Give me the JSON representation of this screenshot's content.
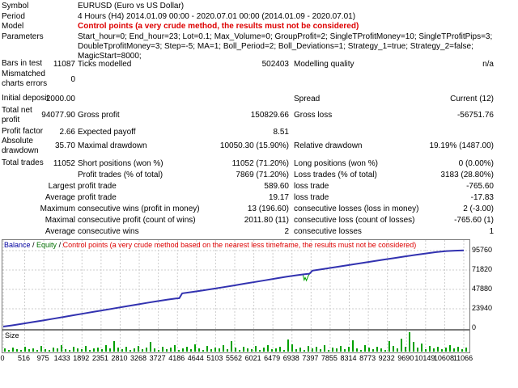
{
  "report": {
    "rows": [
      {
        "c1": "Symbol",
        "c3": "EURUSD (Euro vs US Dollar)",
        "wide": true,
        "top": 2
      },
      {
        "c1": "Period",
        "c3": "4 Hours (H4) 2014.01.09 00:00 - 2020.07.01 00:00 (2014.01.09 - 2020.07.01)",
        "wide": true,
        "top": 15
      },
      {
        "c1": "Model",
        "c3": "Control points (a very crude method, the results must not be considered)",
        "wide": true,
        "alert": true,
        "top": 27
      },
      {
        "c1": "Parameters",
        "c3": "Start_hour=0; End_hour=23; Lot=0.1; Max_Volume=0; GroupProfit=2; SingleTProfitMoney=10; SingleTProfitPips=3; DoubleTprofitMoney=3; Step=-5; MA=1; Boll_Period=2; Boll_Deviations=1; Strategy_1=true; Strategy_2=false; MagicStart=8000;",
        "wide": true,
        "h": 26,
        "top": 40
      },
      {
        "c1": "Bars in test",
        "c2": "11087",
        "c3": "Ticks modelled",
        "c4": "502403",
        "c5": "Modelling quality",
        "c6": "n/a",
        "top": 73
      },
      {
        "c1": "Mismatched charts errors",
        "c2": "0",
        "h": 26,
        "top": 86
      },
      {
        "c1": "Initial deposit",
        "c2": "2000.00",
        "c5": "Spread",
        "c6": "Current (12)",
        "top": 116
      },
      {
        "c1": "Total net profit",
        "c2": "94077.90",
        "c3": "Gross profit",
        "c4": "150829.66",
        "c5": "Gross loss",
        "c6": "-56751.76",
        "h": 24,
        "top": 131
      },
      {
        "c1": "Profit factor",
        "c2": "2.66",
        "c3": "Expected payoff",
        "c4": "8.51",
        "top": 157
      },
      {
        "c1": "Absolute drawdown",
        "c2": "35.70",
        "c3": "Maximal drawdown",
        "c4": "10050.30 (15.90%)",
        "c5": "Relative drawdown",
        "c6": "19.19% (1487.00)",
        "h": 24,
        "top": 169
      },
      {
        "c1": "Total trades",
        "c2": "11052",
        "c3": "Short positions (won %)",
        "c4": "11052 (71.20%)",
        "c5": "Long positions (won %)",
        "c6": "0 (0.00%)",
        "top": 196
      },
      {
        "c3": "Profit trades (% of total)",
        "c4": "7869 (71.20%)",
        "c5": "Loss trades (% of total)",
        "c6": "3183 (28.80%)",
        "top": 210
      },
      {
        "c2": "Largest",
        "c3": "profit trade",
        "c4": "589.60",
        "c5": "loss trade",
        "c6": "-765.60",
        "top": 224
      },
      {
        "c2": "Average",
        "c3": "profit trade",
        "c4": "19.17",
        "c5": "loss trade",
        "c6": "-17.83",
        "top": 238
      },
      {
        "c2": "Maximum",
        "c3": "consecutive wins (profit in money)",
        "c4": "13 (196.60)",
        "c5": "consecutive losses (loss in money)",
        "c6": "2 (-3.00)",
        "top": 252
      },
      {
        "c2": "Maximal",
        "c3": "consecutive profit (count of wins)",
        "c4": "2011.80 (11)",
        "c5": "consecutive loss (count of losses)",
        "c6": "-765.60 (1)",
        "top": 266
      },
      {
        "c2": "Average",
        "c3": "consecutive wins",
        "c4": "2",
        "c5": "consecutive losses",
        "c6": "1",
        "top": 280
      }
    ]
  },
  "chart_data": {
    "type": "line",
    "legend": {
      "balance_label": "Balance",
      "equity_label": "Equity",
      "separator": " / ",
      "note": "Control points (a very crude method based on the nearest less timeframe, the results must not be considered)"
    },
    "x_range": [
      0,
      11066
    ],
    "x_ticks": [
      0,
      516,
      975,
      1433,
      1892,
      2351,
      2810,
      3268,
      3727,
      4186,
      4644,
      5103,
      5562,
      6021,
      6479,
      6938,
      7397,
      7855,
      8314,
      8773,
      9232,
      9690,
      10149,
      10608,
      11066
    ],
    "y_ticks": [
      0,
      23940,
      47880,
      71820,
      95760
    ],
    "grid": true,
    "legend_position": "top-left",
    "colors": {
      "grid": "#cdcdcd",
      "balance": "#3232b0",
      "equity": "#00a000",
      "note": "#dd0000",
      "bars": "#00a000"
    },
    "series": [
      {
        "name": "Equity",
        "color": "#00a000",
        "width": 1,
        "points": [
          [
            0,
            2000
          ],
          [
            200,
            3400
          ],
          [
            450,
            5400
          ],
          [
            700,
            7500
          ],
          [
            950,
            9500
          ],
          [
            1200,
            11700
          ],
          [
            1450,
            13900
          ],
          [
            1700,
            16100
          ],
          [
            1950,
            18300
          ],
          [
            2200,
            20400
          ],
          [
            2450,
            22500
          ],
          [
            2700,
            24700
          ],
          [
            2950,
            26900
          ],
          [
            3200,
            29000
          ],
          [
            3450,
            31200
          ],
          [
            3700,
            33300
          ],
          [
            3950,
            35300
          ],
          [
            4150,
            36700
          ],
          [
            4230,
            37000
          ],
          [
            4300,
            43000
          ],
          [
            4550,
            44800
          ],
          [
            4800,
            46700
          ],
          [
            5050,
            48600
          ],
          [
            5300,
            50700
          ],
          [
            5550,
            52800
          ],
          [
            5800,
            55000
          ],
          [
            6050,
            57100
          ],
          [
            6300,
            59200
          ],
          [
            6550,
            61300
          ],
          [
            6800,
            63400
          ],
          [
            7000,
            64900
          ],
          [
            7200,
            66300
          ],
          [
            7230,
            59500
          ],
          [
            7255,
            62500
          ],
          [
            7285,
            58800
          ],
          [
            7320,
            63500
          ],
          [
            7360,
            67200
          ],
          [
            7430,
            71000
          ],
          [
            7650,
            72700
          ],
          [
            7900,
            74700
          ],
          [
            8150,
            76700
          ],
          [
            8400,
            78700
          ],
          [
            8650,
            80700
          ],
          [
            8900,
            82700
          ],
          [
            9150,
            84700
          ],
          [
            9400,
            86600
          ],
          [
            9650,
            88500
          ],
          [
            9900,
            90400
          ],
          [
            10150,
            92200
          ],
          [
            10400,
            93900
          ],
          [
            10650,
            95200
          ],
          [
            10850,
            95700
          ],
          [
            11066,
            96078
          ]
        ]
      },
      {
        "name": "Balance",
        "color": "#3232b0",
        "width": 2,
        "points": [
          [
            0,
            2000
          ],
          [
            200,
            3400
          ],
          [
            450,
            5400
          ],
          [
            700,
            7500
          ],
          [
            950,
            9500
          ],
          [
            1200,
            11700
          ],
          [
            1450,
            13900
          ],
          [
            1700,
            16100
          ],
          [
            1950,
            18300
          ],
          [
            2200,
            20400
          ],
          [
            2450,
            22500
          ],
          [
            2700,
            24700
          ],
          [
            2950,
            26900
          ],
          [
            3200,
            29000
          ],
          [
            3450,
            31200
          ],
          [
            3700,
            33300
          ],
          [
            3950,
            35300
          ],
          [
            4150,
            36700
          ],
          [
            4230,
            37000
          ],
          [
            4300,
            43000
          ],
          [
            4550,
            44800
          ],
          [
            4800,
            46700
          ],
          [
            5050,
            48600
          ],
          [
            5300,
            50700
          ],
          [
            5550,
            52800
          ],
          [
            5800,
            55000
          ],
          [
            6050,
            57100
          ],
          [
            6300,
            59200
          ],
          [
            6550,
            61300
          ],
          [
            6800,
            63400
          ],
          [
            7000,
            64900
          ],
          [
            7200,
            66300
          ],
          [
            7360,
            67200
          ],
          [
            7430,
            71000
          ],
          [
            7650,
            72700
          ],
          [
            7900,
            74700
          ],
          [
            8150,
            76700
          ],
          [
            8400,
            78700
          ],
          [
            8650,
            80700
          ],
          [
            8900,
            82700
          ],
          [
            9150,
            84700
          ],
          [
            9400,
            86600
          ],
          [
            9650,
            88500
          ],
          [
            9900,
            90400
          ],
          [
            10150,
            92200
          ],
          [
            10400,
            93900
          ],
          [
            10650,
            95200
          ],
          [
            10850,
            95700
          ],
          [
            11066,
            96078
          ]
        ]
      }
    ],
    "size_panel": {
      "label": "Size",
      "bar_color": "#00a000",
      "bar_values": [
        4,
        2,
        5,
        3,
        2,
        6,
        3,
        4,
        2,
        7,
        3,
        2,
        5,
        4,
        8,
        3,
        2,
        6,
        4,
        3,
        7,
        2,
        4,
        5,
        3,
        8,
        4,
        13,
        5,
        3,
        6,
        2,
        4,
        7,
        3,
        5,
        12,
        4,
        2,
        6,
        3,
        5,
        8,
        2,
        4,
        6,
        3,
        9,
        4,
        2,
        7,
        3,
        5,
        4,
        8,
        3,
        13,
        5,
        2,
        6,
        4,
        3,
        7,
        2,
        5,
        8,
        3,
        4,
        6,
        2,
        15,
        9,
        3,
        5,
        2,
        7,
        4,
        6,
        3,
        8,
        2,
        5,
        4,
        7,
        3,
        6,
        14,
        4,
        2,
        8,
        5,
        3,
        6,
        4,
        2,
        13,
        7,
        4,
        16,
        6,
        24,
        12,
        5,
        10,
        3,
        7,
        4,
        6,
        3,
        5,
        8,
        4,
        6,
        3,
        5
      ]
    }
  }
}
